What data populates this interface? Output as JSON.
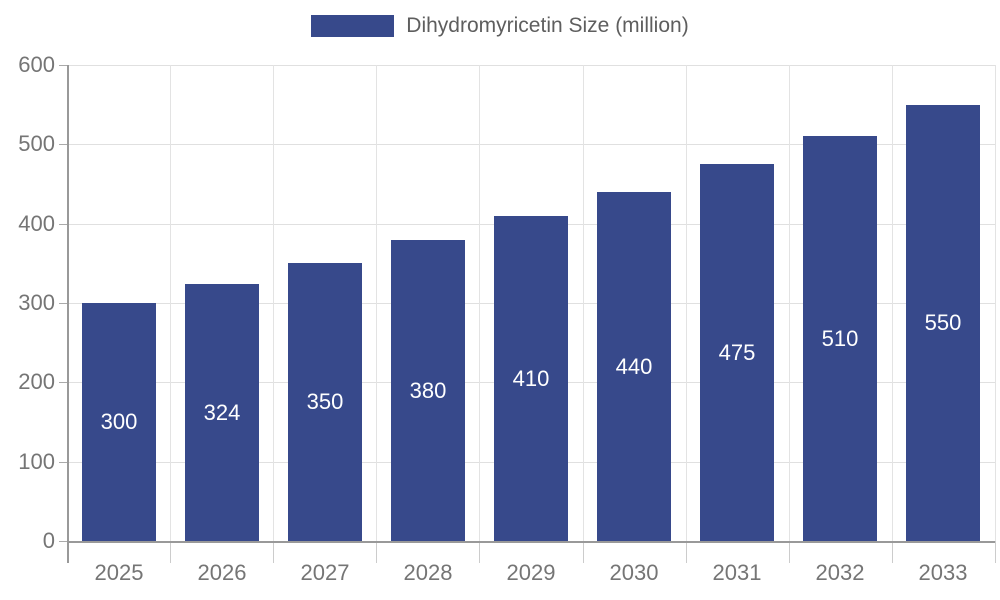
{
  "legend": {
    "label": "Dihydromyricetin Size (million)"
  },
  "chart_data": {
    "type": "bar",
    "title": "",
    "series_name": "Dihydromyricetin Size (million)",
    "categories": [
      "2025",
      "2026",
      "2027",
      "2028",
      "2029",
      "2030",
      "2031",
      "2032",
      "2033"
    ],
    "values": [
      300,
      324,
      350,
      380,
      410,
      440,
      475,
      510,
      550
    ],
    "xlabel": "",
    "ylabel": "",
    "ylim": [
      0,
      600
    ],
    "y_ticks": [
      0,
      100,
      200,
      300,
      400,
      500,
      600
    ],
    "grid": true,
    "legend_position": "top-center",
    "bar_labels_inside": true,
    "colors": {
      "bar": "#37498B",
      "bar_label": "#ffffff",
      "axis_text": "#757575",
      "legend_text": "#5e5e5e",
      "grid_line": "#e0e0e0",
      "axis_line": "#999999"
    }
  }
}
